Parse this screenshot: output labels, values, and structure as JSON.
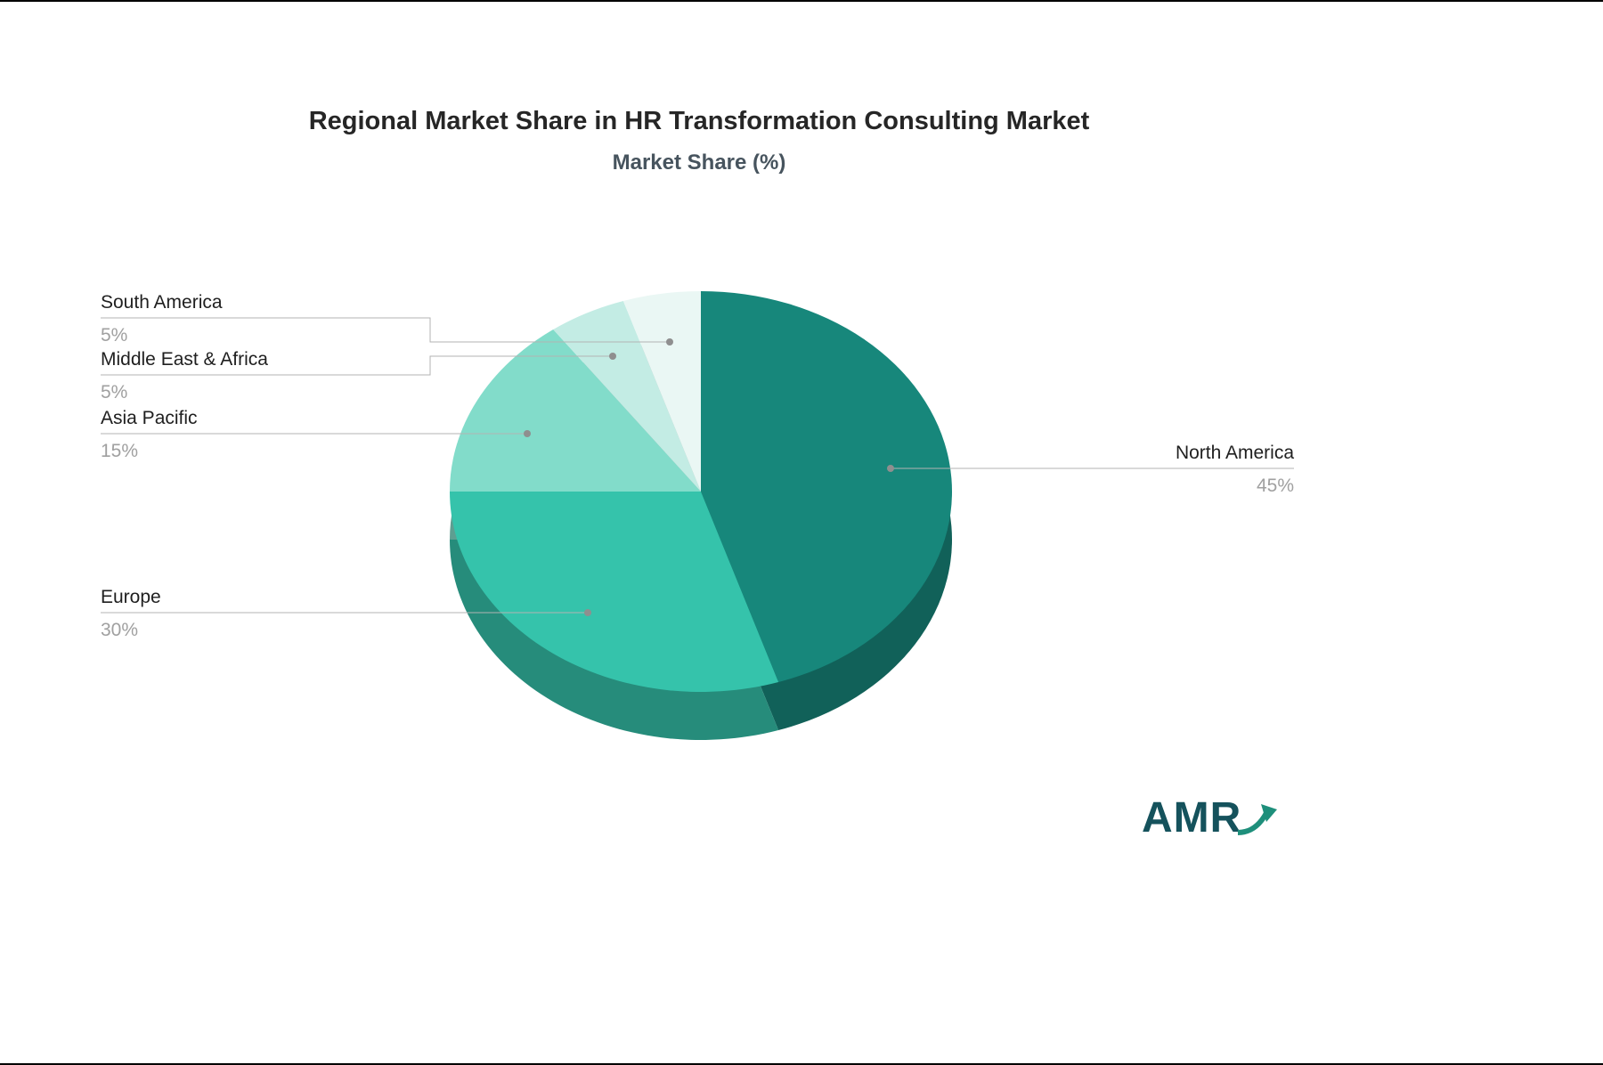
{
  "header": {
    "title": "Regional Market Share in HR Transformation Consulting Market",
    "subtitle": "Market Share (%)"
  },
  "chart_data": {
    "type": "pie",
    "title": "Regional Market Share in HR Transformation Consulting Market",
    "subtitle": "Market Share (%)",
    "unit": "%",
    "effect": "3d",
    "direction": "clockwise",
    "start_angle_deg": 0,
    "legend_position": "callout-labels",
    "slices": [
      {
        "label": "North America",
        "value": 45,
        "display_value": "45%",
        "color": "#17877b"
      },
      {
        "label": "Europe",
        "value": 30,
        "display_value": "30%",
        "color": "#35c3ab"
      },
      {
        "label": "Asia Pacific",
        "value": 15,
        "display_value": "15%",
        "color": "#82dcca"
      },
      {
        "label": "Middle East & Africa",
        "value": 5,
        "display_value": "5%",
        "color": "#c3ece4"
      },
      {
        "label": "South America",
        "value": 5,
        "display_value": "5%",
        "color": "#eaf7f4"
      }
    ],
    "label_text_color": "#1f1f1f",
    "value_text_color": "#a0a0a0"
  },
  "logo": {
    "text": "AMR",
    "color": "#15525c",
    "arrow_color": "#1e8f7b"
  }
}
